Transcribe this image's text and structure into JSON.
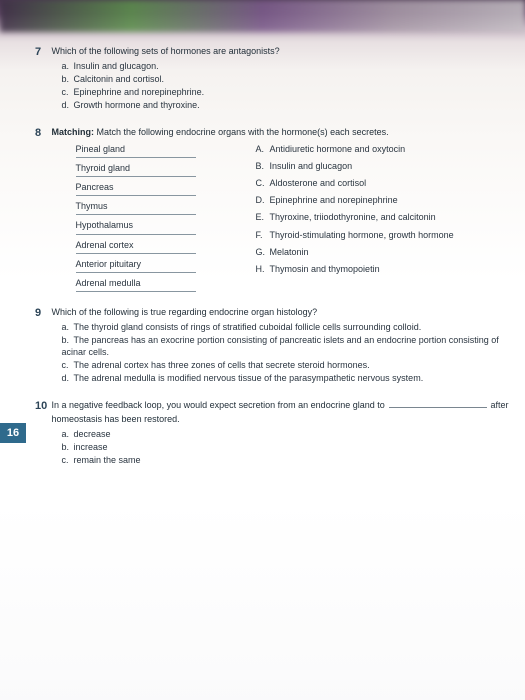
{
  "tab_number": "16",
  "q7": {
    "num": "7",
    "stem": "Which of the following sets of hormones are antagonists?",
    "opts": [
      {
        "l": "a.",
        "t": "Insulin and glucagon."
      },
      {
        "l": "b.",
        "t": "Calcitonin and cortisol."
      },
      {
        "l": "c.",
        "t": "Epinephrine and norepinephrine."
      },
      {
        "l": "d.",
        "t": "Growth hormone and thyroxine."
      }
    ]
  },
  "q8": {
    "num": "8",
    "lead": "Matching:",
    "stem": " Match the following endocrine organs with the hormone(s) each secretes.",
    "left": [
      "Pineal gland",
      "Thyroid gland",
      "Pancreas",
      "Thymus",
      "Hypothalamus",
      "Adrenal cortex",
      "Anterior pituitary",
      "Adrenal medulla"
    ],
    "right": [
      {
        "l": "A.",
        "t": "Antidiuretic hormone and oxytocin"
      },
      {
        "l": "B.",
        "t": "Insulin and glucagon"
      },
      {
        "l": "C.",
        "t": "Aldosterone and cortisol"
      },
      {
        "l": "D.",
        "t": "Epinephrine and norepinephrine"
      },
      {
        "l": "E.",
        "t": "Thyroxine, triiodothyronine, and calcitonin"
      },
      {
        "l": "F.",
        "t": "Thyroid-stimulating hormone, growth hormone"
      },
      {
        "l": "G.",
        "t": "Melatonin"
      },
      {
        "l": "H.",
        "t": "Thymosin and thymopoietin"
      }
    ]
  },
  "q9": {
    "num": "9",
    "stem": "Which of the following is true regarding endocrine organ histology?",
    "opts": [
      {
        "l": "a.",
        "t": "The thyroid gland consists of rings of stratified cuboidal follicle cells surrounding colloid."
      },
      {
        "l": "b.",
        "t": "The pancreas has an exocrine portion consisting of pancreatic islets and an endocrine portion consisting of acinar cells."
      },
      {
        "l": "c.",
        "t": "The adrenal cortex has three zones of cells that secrete steroid hormones."
      },
      {
        "l": "d.",
        "t": "The adrenal medulla is modified nervous tissue of the parasympathetic nervous system."
      }
    ]
  },
  "q10": {
    "num": "10",
    "stem_a": "In a negative feedback loop, you would expect secretion from an endocrine gland to",
    "stem_b": "after",
    "stem_c": "homeostasis has been restored.",
    "opts": [
      {
        "l": "a.",
        "t": "decrease"
      },
      {
        "l": "b.",
        "t": "increase"
      },
      {
        "l": "c.",
        "t": "remain the same"
      }
    ]
  }
}
